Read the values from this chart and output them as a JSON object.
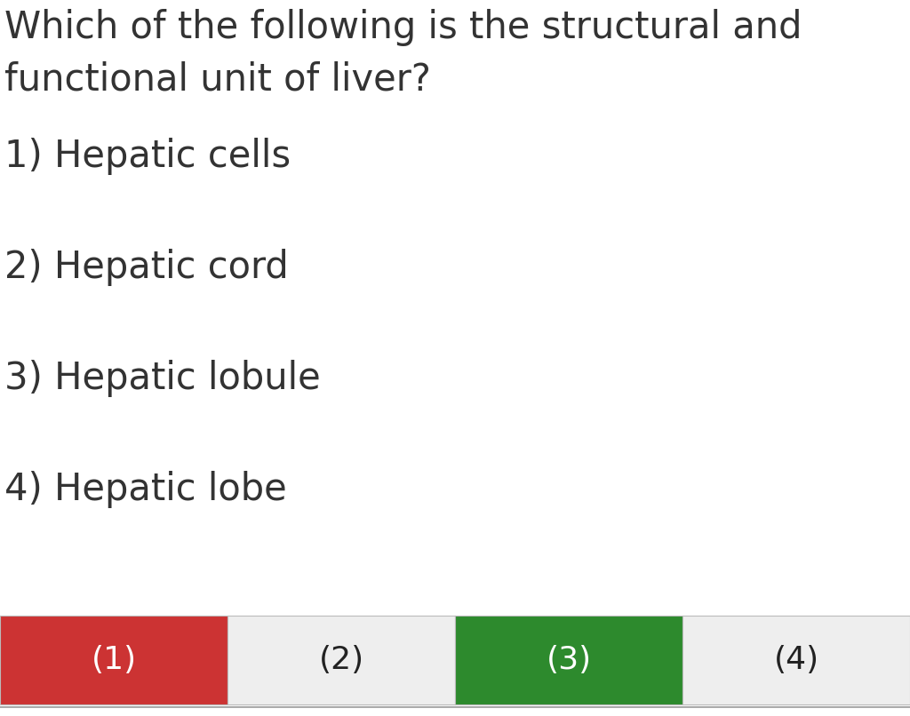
{
  "question_line1": "Which of the following is the structural and",
  "question_line2": "functional unit of liver?",
  "options": [
    {
      "num": "1",
      "text": "Hepatic cells"
    },
    {
      "num": "2",
      "text": "Hepatic cord"
    },
    {
      "num": "3",
      "text": "Hepatic lobule"
    },
    {
      "num": "4",
      "text": "Hepatic lobe"
    }
  ],
  "buttons": [
    {
      "label": "(1)",
      "bg_color": "#cc3333",
      "text_color": "#ffffff"
    },
    {
      "label": "(2)",
      "bg_color": "#eeeeee",
      "text_color": "#222222"
    },
    {
      "label": "(3)",
      "bg_color": "#2d8a2d",
      "text_color": "#ffffff"
    },
    {
      "label": "(4)",
      "bg_color": "#eeeeee",
      "text_color": "#222222"
    }
  ],
  "background_color": "#ffffff",
  "question_fontsize": 30,
  "option_fontsize": 30,
  "button_fontsize": 26
}
